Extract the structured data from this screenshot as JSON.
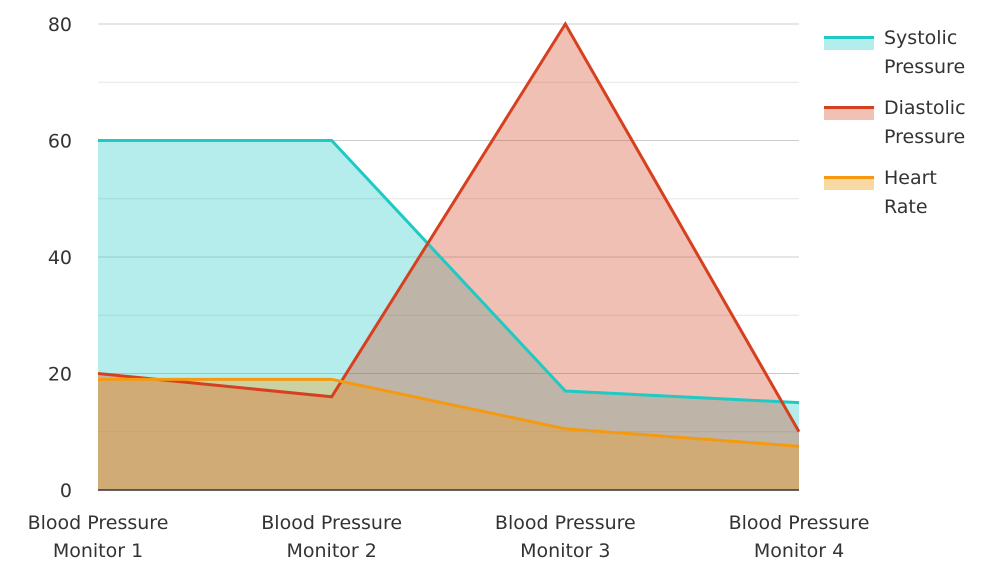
{
  "chart_data": {
    "type": "area",
    "categories": [
      [
        "Blood Pressure",
        "Monitor 1"
      ],
      [
        "Blood Pressure",
        "Monitor 2"
      ],
      [
        "Blood Pressure",
        "Monitor 3"
      ],
      [
        "Blood Pressure",
        "Monitor 4"
      ]
    ],
    "series": [
      {
        "name": [
          "Systolic",
          "Pressure"
        ],
        "values": [
          60,
          60,
          17,
          15
        ],
        "line_color": "#1fc9c4",
        "fill_color": "#b3eeec"
      },
      {
        "name": [
          "Diastolic",
          "Pressure"
        ],
        "values": [
          20,
          16,
          80,
          10
        ],
        "line_color": "#d6401f",
        "fill_color": "#f2c1b6"
      },
      {
        "name": [
          "Heart",
          "Rate"
        ],
        "values": [
          19,
          19,
          10.5,
          7.5
        ],
        "line_color": "#f59a10",
        "fill_color": "#f9d9a3"
      }
    ],
    "y_ticks": [
      "0",
      "20",
      "40",
      "60",
      "80"
    ],
    "ylim": [
      0,
      80
    ],
    "grid": true,
    "legend_position": "right"
  }
}
